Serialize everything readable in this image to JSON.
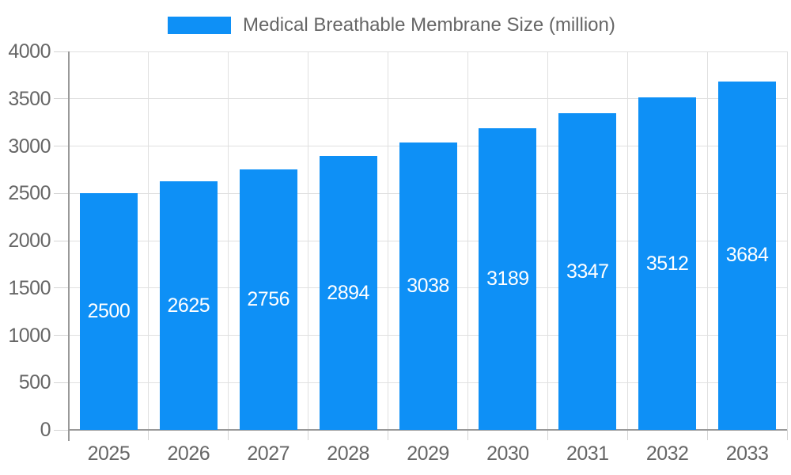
{
  "legend": {
    "label": "Medical Breathable Membrane Size (million)",
    "swatch_color": "#0e90f6"
  },
  "chart_data": {
    "type": "bar",
    "title": "Medical Breathable Membrane Size (million)",
    "categories": [
      "2025",
      "2026",
      "2027",
      "2028",
      "2029",
      "2030",
      "2031",
      "2032",
      "2033"
    ],
    "values": [
      2500,
      2625,
      2756,
      2894,
      3038,
      3189,
      3347,
      3512,
      3684
    ],
    "xlabel": "",
    "ylabel": "",
    "ylim": [
      0,
      4000
    ],
    "yticks": [
      0,
      500,
      1000,
      1500,
      2000,
      2500,
      3000,
      3500,
      4000
    ],
    "grid": true,
    "legend_position": "top-center",
    "value_labels": "inside-center"
  },
  "colors": {
    "bar": "#0e90f6",
    "grid": "#e0e0e0",
    "tick": "#d4d4d4",
    "axis": "#999999",
    "axistext": "#666666",
    "valuetext": "#ffffff",
    "background": "#ffffff"
  }
}
